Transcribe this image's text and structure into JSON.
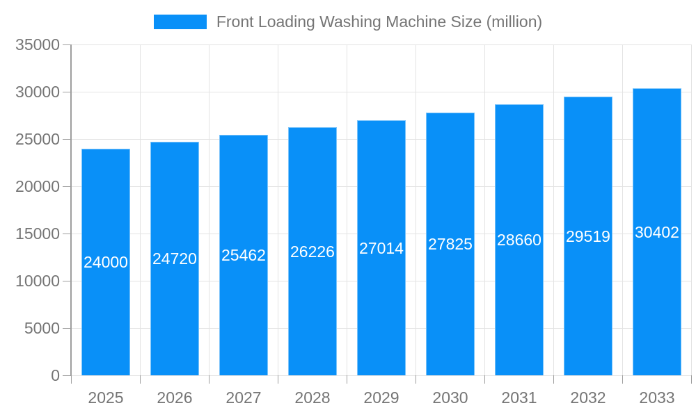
{
  "chart_data": {
    "type": "bar",
    "title": "Front Loading Washing Machine Size (million)",
    "categories": [
      "2025",
      "2026",
      "2027",
      "2028",
      "2029",
      "2030",
      "2031",
      "2032",
      "2033"
    ],
    "series": [
      {
        "name": "Front Loading Washing Machine Size (million)",
        "values": [
          24000,
          24720,
          25462,
          26226,
          27014,
          27825,
          28660,
          29519,
          30402
        ]
      }
    ],
    "values": [
      24000,
      24720,
      25462,
      26226,
      27014,
      27825,
      28660,
      29519,
      30402
    ],
    "bar_value_labels": [
      "24000",
      "24720",
      "25462",
      "26226",
      "27014",
      "27825",
      "28660",
      "29519",
      "30402"
    ],
    "xlabel": "",
    "ylabel": "",
    "ylim": [
      0,
      35000
    ],
    "yticks": [
      0,
      5000,
      10000,
      15000,
      20000,
      25000,
      30000,
      35000
    ],
    "grid": true,
    "legend_position": "top-center",
    "colors": {
      "bar_fill": "#0990f8",
      "bar_border": "#7cc4fa",
      "bar_label_text": "#ffffff",
      "axis_text": "#757575",
      "gridline": "#e3e3e3",
      "axis_line": "#9e9e9e",
      "background": "#ffffff"
    }
  }
}
